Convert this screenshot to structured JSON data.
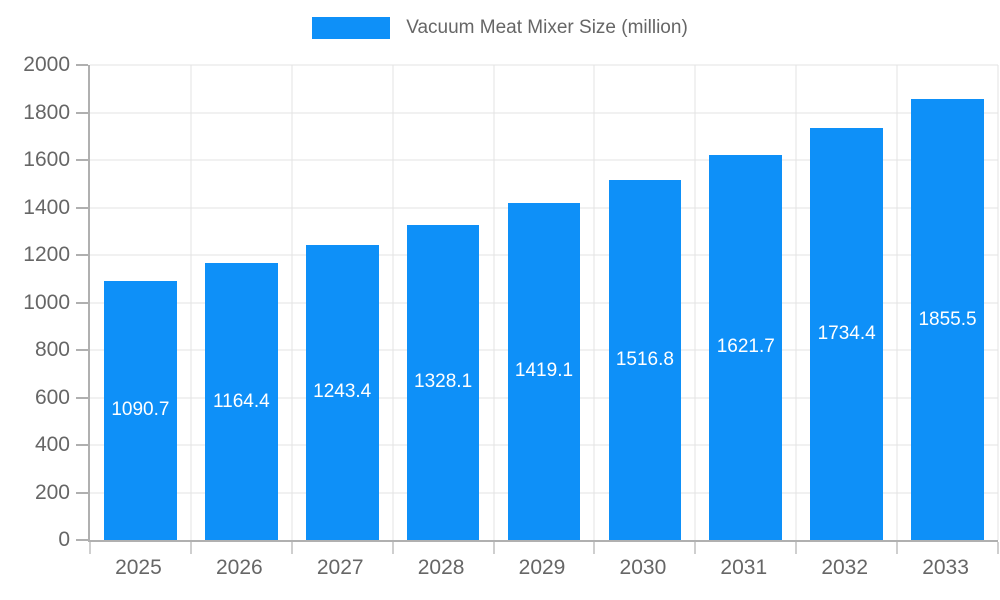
{
  "chart_data": {
    "type": "bar",
    "title": "Vacuum Meat Mixer Size (million)",
    "legend": {
      "position": "top",
      "entries": [
        "Vacuum Meat Mixer Size (million)"
      ]
    },
    "categories": [
      "2025",
      "2026",
      "2027",
      "2028",
      "2029",
      "2030",
      "2031",
      "2032",
      "2033"
    ],
    "series": [
      {
        "name": "Vacuum Meat Mixer Size (million)",
        "values": [
          1090.7,
          1164.4,
          1243.4,
          1328.1,
          1419.1,
          1516.8,
          1621.7,
          1734.4,
          1855.5
        ]
      }
    ],
    "data_labels": [
      "1090.7",
      "1164.4",
      "1243.4",
      "1328.1",
      "1419.1",
      "1516.8",
      "1621.7",
      "1734.4",
      "1855.5"
    ],
    "xlabel": "",
    "ylabel": "",
    "ylim": [
      0,
      2000
    ],
    "yticks": [
      0,
      200,
      400,
      600,
      800,
      1000,
      1200,
      1400,
      1600,
      1800,
      2000
    ],
    "grid": true,
    "colors": {
      "bar": "#0e90f8",
      "bar_label_text": "#ffffff",
      "axis_text": "#666666",
      "axis_line": "#b0b0b0",
      "gridline": "#e3e3e3"
    }
  }
}
